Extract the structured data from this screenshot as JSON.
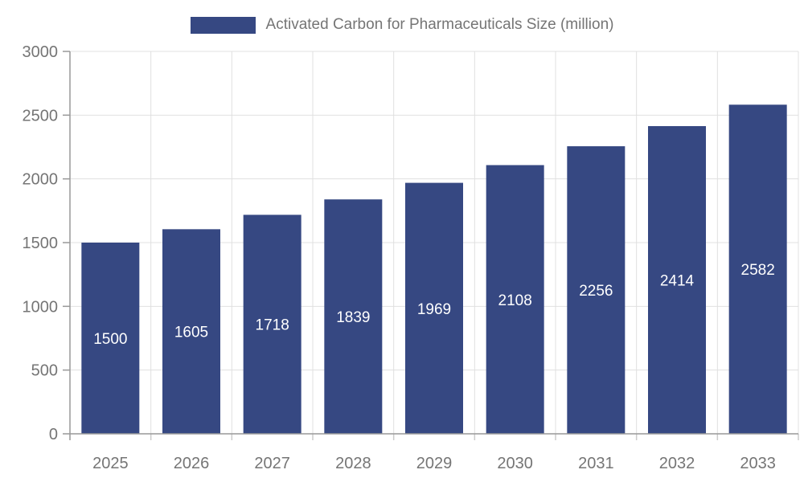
{
  "chart_data": {
    "type": "bar",
    "categories": [
      "2025",
      "2026",
      "2027",
      "2028",
      "2029",
      "2030",
      "2031",
      "2032",
      "2033"
    ],
    "values": [
      1500,
      1605,
      1718,
      1839,
      1969,
      2108,
      2256,
      2414,
      2582
    ],
    "series_name": "Activated Carbon for Pharmaceuticals Size (million)",
    "title": "",
    "xlabel": "",
    "ylabel": "",
    "ylim": [
      0,
      3000
    ],
    "ytick_interval": 500,
    "yticks": [
      0,
      500,
      1000,
      1500,
      2000,
      2500,
      3000
    ],
    "grid": true,
    "legend_position": "top",
    "bar_color": "#364882",
    "bar_label_color": "#ffffff",
    "axis_text_color": "#757575",
    "grid_color": "#e0e0e0",
    "axis_line_color": "#999999",
    "x_tick_color": "#cccccc"
  }
}
